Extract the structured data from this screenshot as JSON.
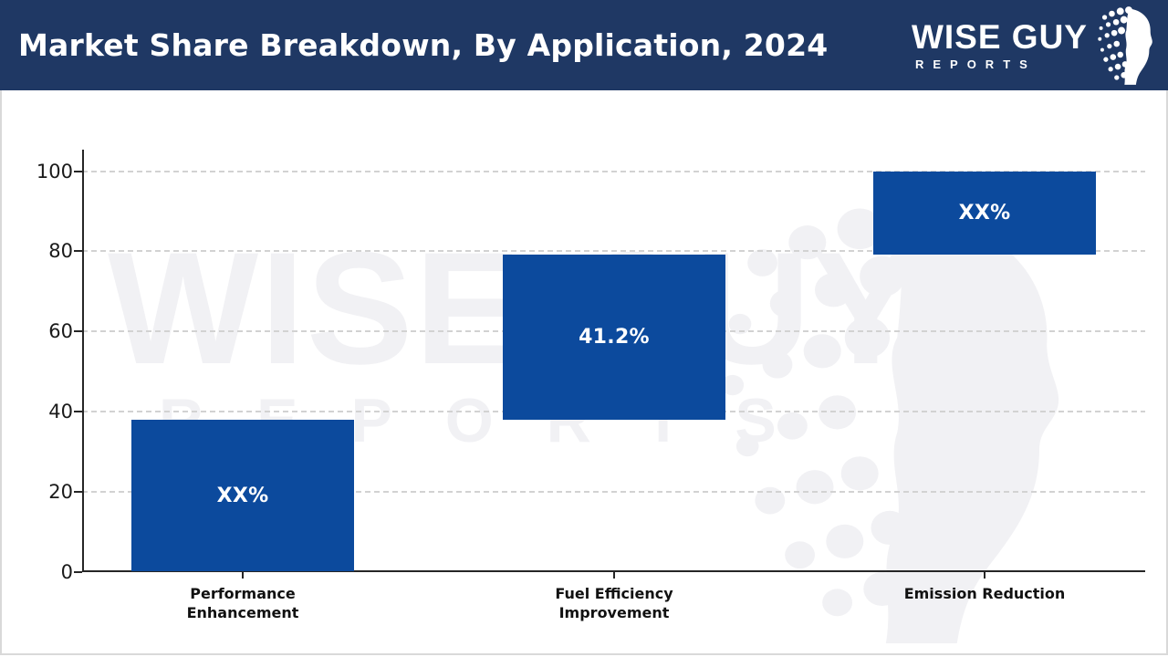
{
  "header": {
    "title": "Market Share Breakdown, By Application, 2024",
    "logo": {
      "line1": "WISE GUY",
      "line2": "REPORTS"
    }
  },
  "watermark": {
    "line1": "WISE GUY",
    "line2": "REPORTS"
  },
  "colors": {
    "header_bg": "#1f3864",
    "bar": "#0c4a9d",
    "bar_label": "#ffffff",
    "grid": "#d2d2d2",
    "axis": "#262626",
    "watermark": "#f1f1f4",
    "frame_border": "#d9d9d9"
  },
  "chart_data": {
    "type": "bar",
    "subtype": "stacked-waterfall-percentage",
    "title": "Market Share Breakdown, By Application, 2024",
    "categories": [
      [
        "Performance",
        "Enhancement"
      ],
      [
        "Fuel Efficiency",
        "Improvement"
      ],
      [
        "Emission Reduction"
      ]
    ],
    "values": [
      37.9,
      41.2,
      20.9
    ],
    "segments": [
      {
        "start": 0,
        "end": 37.9,
        "label": "XX%"
      },
      {
        "start": 37.9,
        "end": 79.1,
        "label": "41.2%"
      },
      {
        "start": 79.1,
        "end": 100,
        "label": "XX%"
      }
    ],
    "yticks": [
      0,
      20,
      40,
      60,
      80,
      100
    ],
    "ylim": [
      0,
      105
    ],
    "xlabel": "",
    "ylabel": "",
    "grid": "dashed-horizontal",
    "legend": "none",
    "bar_color": "#0c4a9d",
    "label_color": "#ffffff"
  }
}
